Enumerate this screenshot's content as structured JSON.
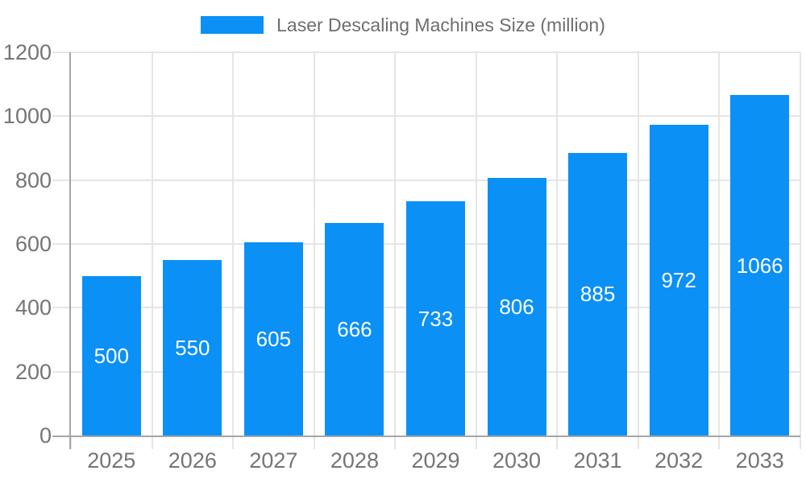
{
  "legend": {
    "label": "Laser Descaling Machines Size (million)"
  },
  "colors": {
    "bar": "#0b90f6",
    "grid": "#e5e5e5",
    "axis": "#a6a6a6",
    "axis_text": "#757575",
    "legend_text": "#6e6e6e",
    "bar_label_text": "#ffffff",
    "background": "#ffffff"
  },
  "chart_data": {
    "type": "bar",
    "title": "Laser Descaling Machines Size (million)",
    "series_name": "Laser Descaling Machines Size (million)",
    "categories": [
      "2025",
      "2026",
      "2027",
      "2028",
      "2029",
      "2030",
      "2031",
      "2032",
      "2033"
    ],
    "values": [
      500,
      550,
      605,
      666,
      733,
      806,
      885,
      972,
      1066
    ],
    "bar_labels": [
      "500",
      "550",
      "605",
      "666",
      "733",
      "806",
      "885",
      "972",
      "1066"
    ],
    "xlabel": "",
    "ylabel": "",
    "ylim": [
      0,
      1200
    ],
    "ytick_step": 200,
    "ytick_labels": [
      "0",
      "200",
      "400",
      "600",
      "800",
      "1000",
      "1200"
    ],
    "grid": true,
    "legend_position": "top",
    "bar_labels_visible": true
  }
}
